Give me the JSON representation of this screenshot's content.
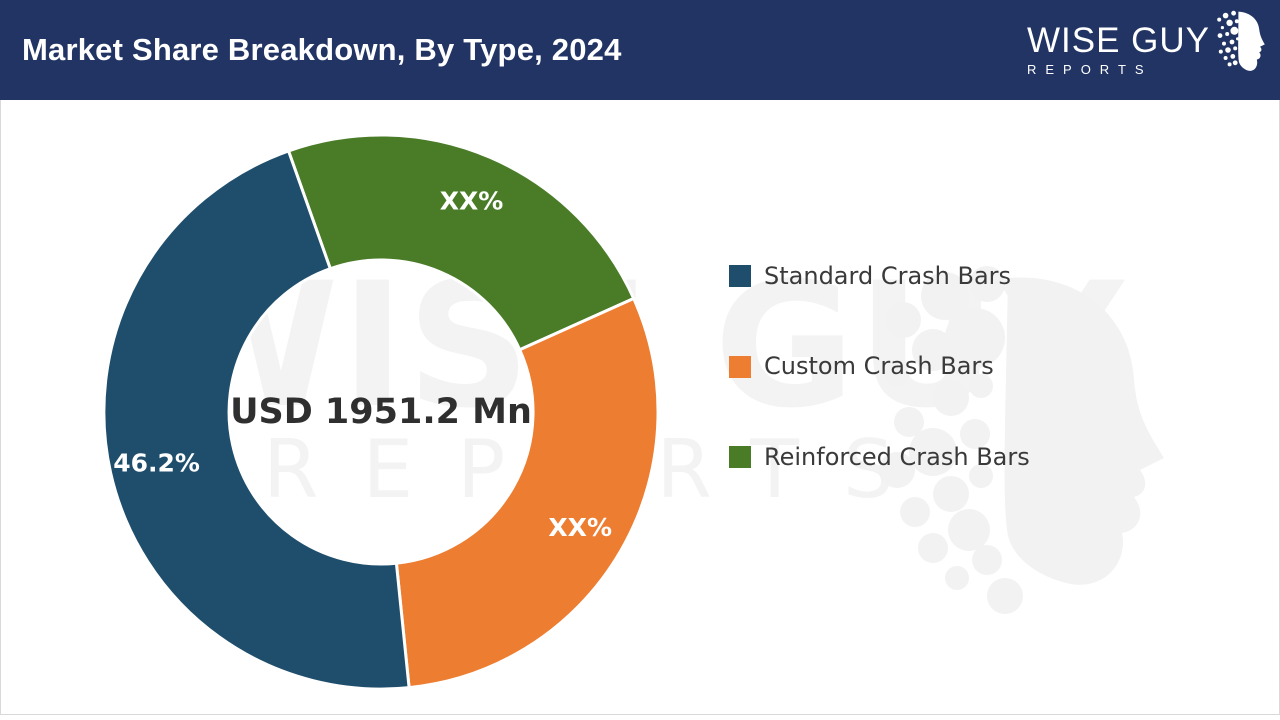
{
  "header": {
    "title": "Market Share Breakdown, By Type, 2024",
    "logo": {
      "name": "WISE GUY",
      "sub": "REPORTS"
    }
  },
  "watermark": {
    "line1": "WISE GUY",
    "line2": "REPORTS"
  },
  "chart_data": {
    "type": "pie",
    "subtype": "donut",
    "title": "Market Share Breakdown, By Type, 2024",
    "center_label": "USD 1951.2 Mn",
    "start_angle_deg_clockwise_from_north": -19.5,
    "legend_position": "right",
    "slices": [
      {
        "id": "reinforced",
        "label": "Reinforced Crash Bars",
        "display_pct": "XX%",
        "value_pct_est": 23.7,
        "color": "#4A7C28"
      },
      {
        "id": "custom",
        "label": "Custom Crash Bars",
        "display_pct": "XX%",
        "value_pct_est": 30.1,
        "color": "#ED7D31"
      },
      {
        "id": "standard",
        "label": "Standard Crash Bars",
        "display_pct": "46.2%",
        "value_pct_est": 46.2,
        "color": "#1F4E6D"
      }
    ]
  },
  "legend": {
    "items": [
      {
        "label": "Standard Crash Bars",
        "color": "#1F4E6D"
      },
      {
        "label": "Custom Crash Bars",
        "color": "#ED7D31"
      },
      {
        "label": "Reinforced Crash Bars",
        "color": "#4A7C28"
      }
    ]
  },
  "colors": {
    "header_bg": "#213464",
    "blue": "#1F4E6D",
    "orange": "#ED7D31",
    "green": "#4A7C28",
    "text_dark": "#2F2F2F",
    "legend_text": "#3A3A3A",
    "watermark": "#F3F3F3",
    "border": "#D9D9D9"
  }
}
